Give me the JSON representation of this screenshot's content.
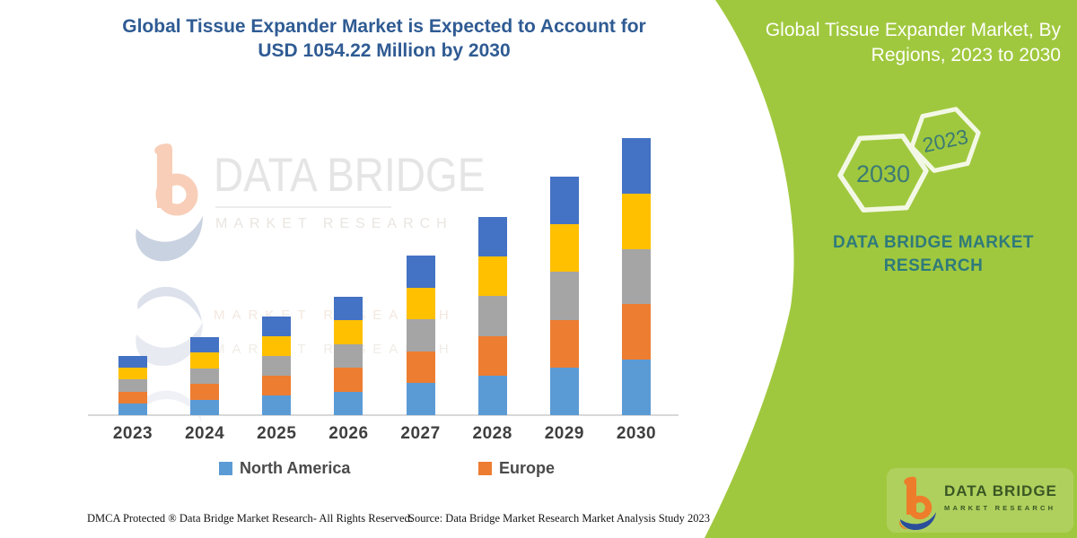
{
  "header": {
    "title": "Global Tissue Expander Market is Expected to Account for USD 1054.22 Million by 2030",
    "title_color": "#2F5B93"
  },
  "side_panel": {
    "bg_color": "#A0C83E",
    "title": "Global Tissue Expander Market, By Regions, 2023 to 2030",
    "hexagons": [
      {
        "label": "2030"
      },
      {
        "label": "2023"
      }
    ],
    "brand_text": "DATA BRIDGE MARKET RESEARCH",
    "brand_text_color": "#2F7A7B",
    "logo": {
      "line1": "DATA BRIDGE",
      "line2": "MARKET RESEARCH",
      "orange": "#EE7D2B",
      "blue": "#2B4E9B"
    }
  },
  "watermark": {
    "line1": "DATA BRIDGE",
    "line2": "MARKET RESEARCH",
    "faint_rows": [
      "MARKET RESEARCH",
      "MARKET RESEARCH"
    ]
  },
  "chart_data": {
    "type": "bar",
    "stacked": true,
    "title": "Global Tissue Expander Market is Expected to Account for USD 1054.22 Million by 2030",
    "categories": [
      "2023",
      "2024",
      "2025",
      "2026",
      "2027",
      "2028",
      "2029",
      "2030"
    ],
    "totals_usd_million_est": [
      225,
      297,
      375,
      450,
      607,
      754,
      908,
      1054.22
    ],
    "series": [
      {
        "name": "North America",
        "color": "#5B9BD5",
        "in_legend": true,
        "values": [
          45,
          59.4,
          75,
          90,
          121.4,
          150.8,
          181.6,
          210.84
        ]
      },
      {
        "name": "Europe",
        "color": "#ED7D31",
        "in_legend": true,
        "values": [
          45,
          59.4,
          75,
          90,
          121.4,
          150.8,
          181.6,
          210.84
        ]
      },
      {
        "name": "unlabeled-gray",
        "color": "#A5A5A5",
        "in_legend": false,
        "values": [
          45,
          59.4,
          75,
          90,
          121.4,
          150.8,
          181.6,
          210.84
        ]
      },
      {
        "name": "unlabeled-yellow",
        "color": "#FFC000",
        "in_legend": false,
        "values": [
          45,
          59.4,
          75,
          90,
          121.4,
          150.8,
          181.6,
          210.84
        ]
      },
      {
        "name": "unlabeled-dark-blue",
        "color": "#4472C4",
        "in_legend": false,
        "values": [
          45,
          59.4,
          75,
          90,
          121.4,
          150.8,
          181.6,
          210.84
        ]
      }
    ],
    "xlabel": "",
    "ylabel": "",
    "y_axis_visible": false,
    "gridlines": false,
    "legend_position": "bottom"
  },
  "footer": {
    "left": "DMCA Protected ® Data Bridge Market Research-  All Rights Reserved.",
    "right": "Source: Data Bridge Market Research  Market Analysis Study 2023"
  }
}
